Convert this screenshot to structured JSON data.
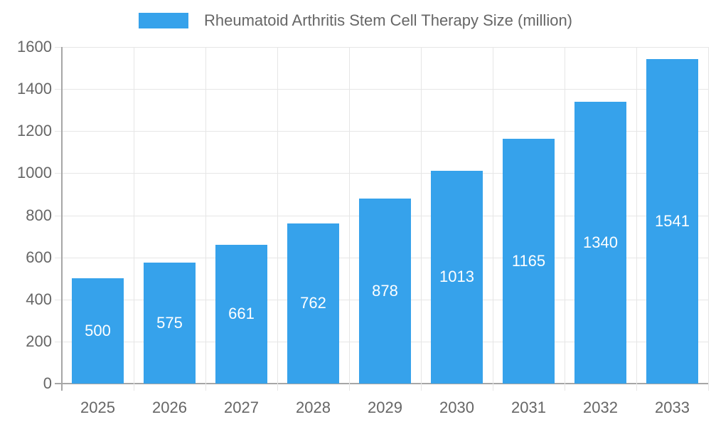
{
  "chart_data": {
    "type": "bar",
    "title": "Rheumatoid Arthritis Stem Cell Therapy Size (million)",
    "series": [
      {
        "name": "Rheumatoid Arthritis Stem Cell Therapy Size (million)",
        "values": [
          500,
          575,
          661,
          762,
          878,
          1013,
          1165,
          1340,
          1541
        ]
      }
    ],
    "categories": [
      "2025",
      "2026",
      "2027",
      "2028",
      "2029",
      "2030",
      "2031",
      "2032",
      "2033"
    ],
    "xlabel": "",
    "ylabel": "",
    "ylim": [
      0,
      1600
    ],
    "yticks": [
      0,
      200,
      400,
      600,
      800,
      1000,
      1200,
      1400,
      1600
    ],
    "grid": true,
    "legend_position": "top-center",
    "bar_value_labels_visible": true,
    "colors": {
      "bar": "#36A2EB",
      "bar_value_label": "#FFFFFF",
      "tick_text": "#666666",
      "legend_text": "#666666",
      "grid_line": "#E6E6E6",
      "axis_line": "#A6A6A6",
      "background": "#FFFFFF"
    }
  }
}
